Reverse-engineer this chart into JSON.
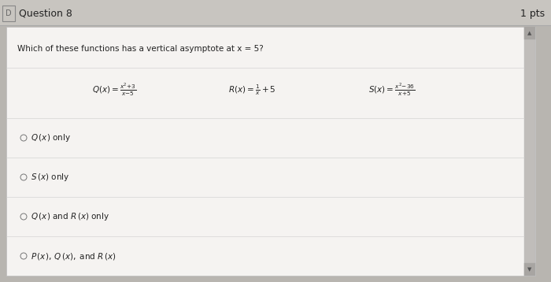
{
  "title": "Question 8",
  "pts": "1 pts",
  "question": "Which of these functions has a vertical asymptote at x = 5?",
  "outer_bg": "#b8b5b0",
  "header_bg": "#c8c5c0",
  "content_bg": "#f0eeec",
  "white_bg": "#f5f3f1",
  "border_color": "#cccccc",
  "text_color": "#222222",
  "gray_text": "#888888",
  "scrollbar_bg": "#c0bdba",
  "scrollbar_handle": "#a8a5a2"
}
